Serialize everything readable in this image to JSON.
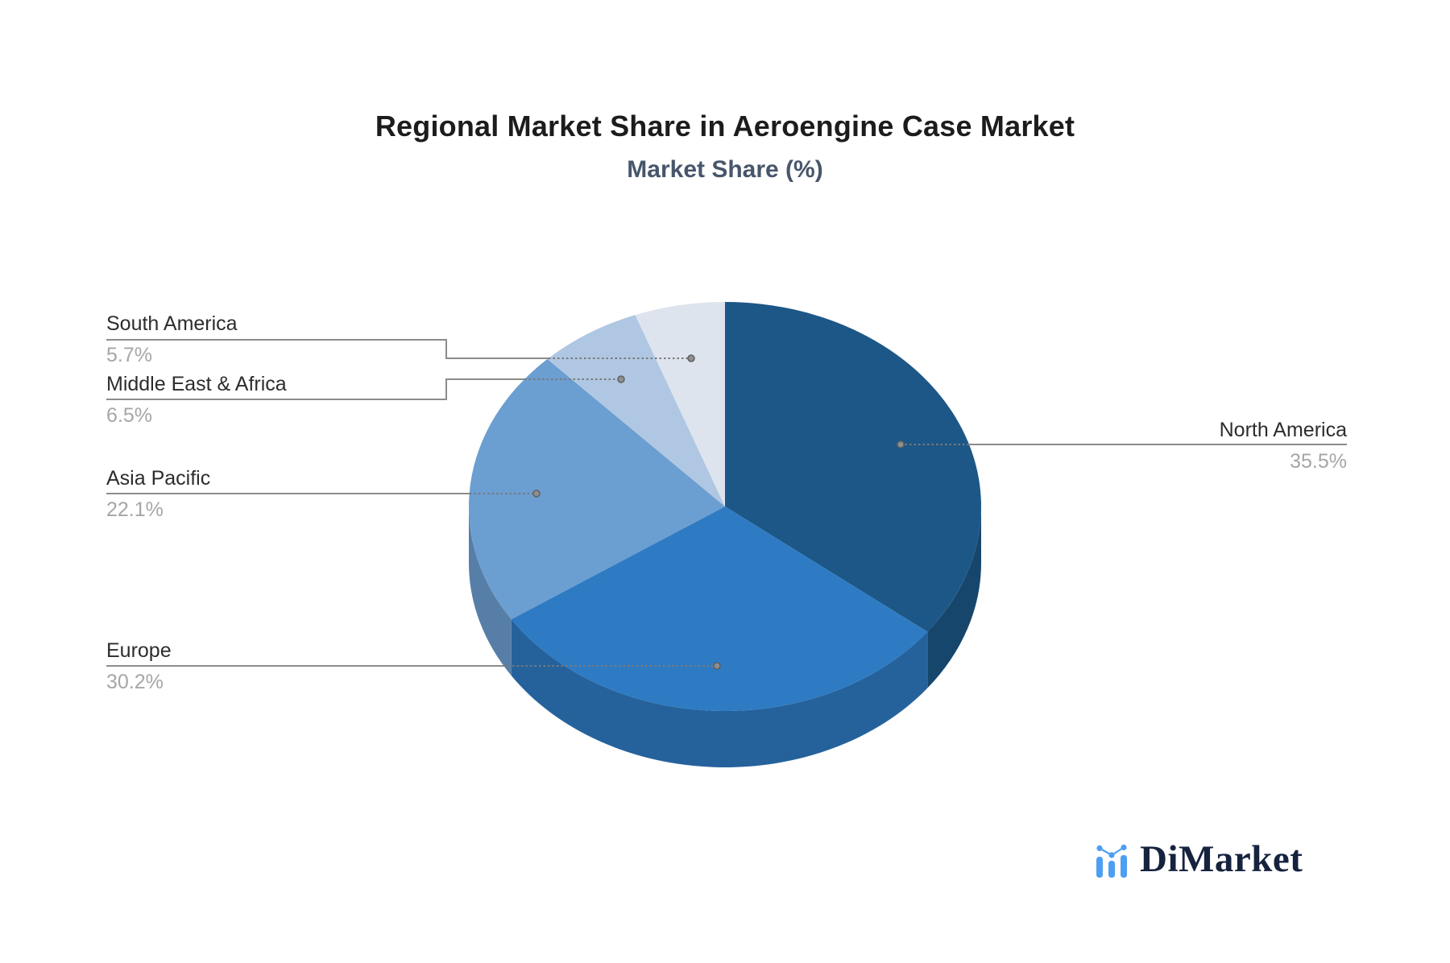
{
  "header": {
    "title": "Regional Market Share in Aeroengine Case Market",
    "subtitle": "Market Share (%)"
  },
  "chart_data": {
    "type": "pie",
    "style": "3d",
    "title": "Regional Market Share in Aeroengine Case Market",
    "subtitle": "Market Share (%)",
    "unit": "%",
    "direction": "clockwise",
    "start_angle_deg": 0,
    "legend_position": "none",
    "labeling": "callout-lines-with-dots",
    "slices": [
      {
        "label": "North America",
        "value": 35.5,
        "value_label": "35.5%",
        "color": "#1d5787",
        "callout_side": "right"
      },
      {
        "label": "Europe",
        "value": 30.2,
        "value_label": "30.2%",
        "color": "#2e7bc3",
        "callout_side": "left"
      },
      {
        "label": "Asia Pacific",
        "value": 22.1,
        "value_label": "22.1%",
        "color": "#6b9ed1",
        "callout_side": "left"
      },
      {
        "label": "Middle East & Africa",
        "value": 6.5,
        "value_label": "6.5%",
        "color": "#afc7e2",
        "callout_side": "left"
      },
      {
        "label": "South America",
        "value": 5.7,
        "value_label": "5.7%",
        "color": "#dde4ed",
        "callout_side": "left"
      }
    ]
  },
  "branding": {
    "logo_text": "DiMarket",
    "logo_icon": "bar-chart-trend-icon",
    "logo_text_color": "#16233f",
    "logo_accent_color": "#4d9ff2"
  },
  "colors": {
    "background": "#ffffff",
    "title_text": "#1c1c1c",
    "subtitle_text": "#47566b",
    "label_text": "#2d2d2d",
    "value_text": "#a6a6a6",
    "connector_line": "#8c8c8c",
    "connector_dot": "#8f8f8f"
  }
}
